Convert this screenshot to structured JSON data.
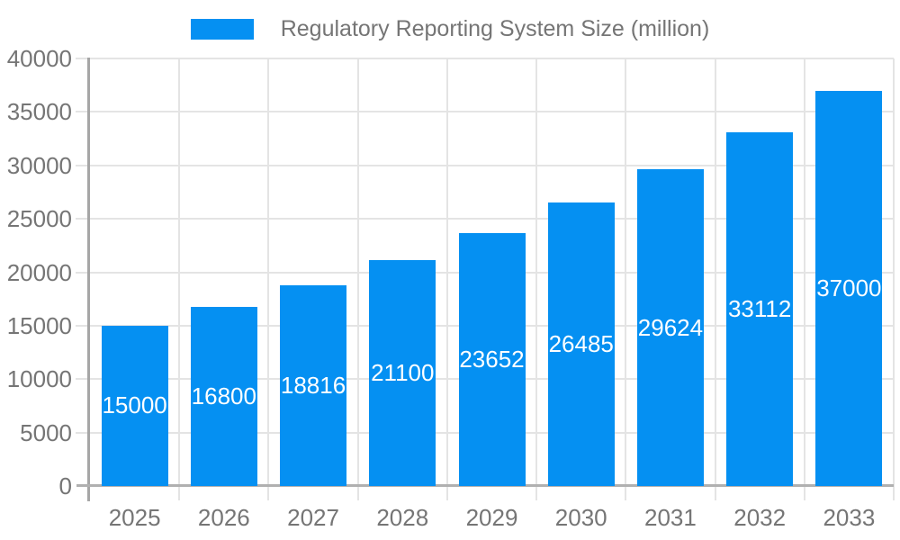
{
  "colors": {
    "bar": "#0590F2",
    "grid": "#e4e4e4",
    "axis": "#a6a6a6",
    "axis_baseline": "#b0b0b0",
    "text": "#757575",
    "bar_label": "#ffffff",
    "background": "#ffffff"
  },
  "legend": {
    "swatch_color": "#0590F2"
  },
  "chart_data": {
    "type": "bar",
    "title": "Regulatory Reporting System Size (million)",
    "categories": [
      "2025",
      "2026",
      "2027",
      "2028",
      "2029",
      "2030",
      "2031",
      "2032",
      "2033"
    ],
    "values": [
      15000,
      16800,
      18816,
      21100,
      23652,
      26485,
      29624,
      33112,
      37000
    ],
    "bar_value_labels": [
      "15000",
      "16800",
      "18816",
      "21100",
      "23652",
      "26485",
      "29624",
      "33112",
      "37000"
    ],
    "xlabel": "",
    "ylabel": "",
    "ylim": [
      0,
      40000
    ],
    "ytick_step": 5000,
    "ytick_labels": [
      "0",
      "5000",
      "10000",
      "15000",
      "20000",
      "25000",
      "30000",
      "35000",
      "40000"
    ],
    "grid": true,
    "legend_position": "top-center",
    "bar_labels_inside": true
  }
}
